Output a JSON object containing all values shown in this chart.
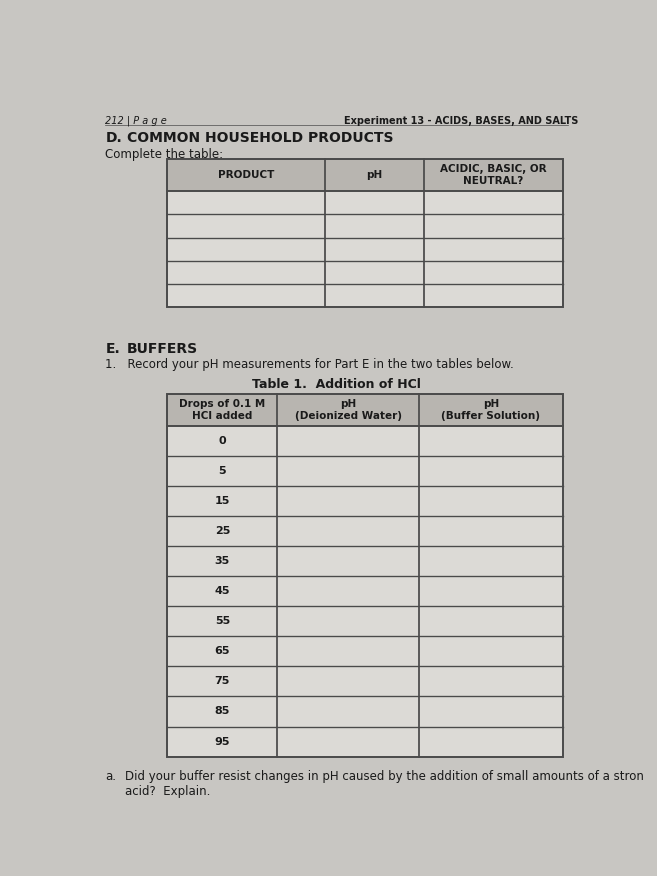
{
  "page_number": "212 | P a g e",
  "header_right": "Experiment 13 - ACIDS, BASES, AND SALTS",
  "section_d_label": "D.",
  "section_d_title": "COMMON HOUSEHOLD PRODUCTS",
  "complete_table_text": "Complete the table:",
  "table_d_headers": [
    "PRODUCT",
    "pH",
    "ACIDIC, BASIC, OR\nNEUTRAL?"
  ],
  "table_d_num_rows": 5,
  "section_e_label": "E.",
  "section_e_title": "BUFFERS",
  "record_text": "1.   Record your pH measurements for Part E in the two tables below.",
  "table1_title": "Table 1.  Addition of HCl",
  "table1_headers": [
    "Drops of 0.1 M\nHCl added",
    "pH\n(Deionized Water)",
    "pH\n(Buffer Solution)"
  ],
  "table1_rows": [
    "0",
    "5",
    "15",
    "25",
    "35",
    "45",
    "55",
    "65",
    "75",
    "85",
    "95"
  ],
  "footnote_label": "a.",
  "footnote_text": "Did your buffer resist changes in pH caused by the addition of small amounts of a stron\nacid?  Explain.",
  "bg_color": "#c8c6c2",
  "page_bg": "#e8e6e2",
  "table_cell_bg": "#dcdad6",
  "header_bg": "#b8b5b0",
  "text_color": "#1a1a1a",
  "border_color": "#4a4a4a"
}
